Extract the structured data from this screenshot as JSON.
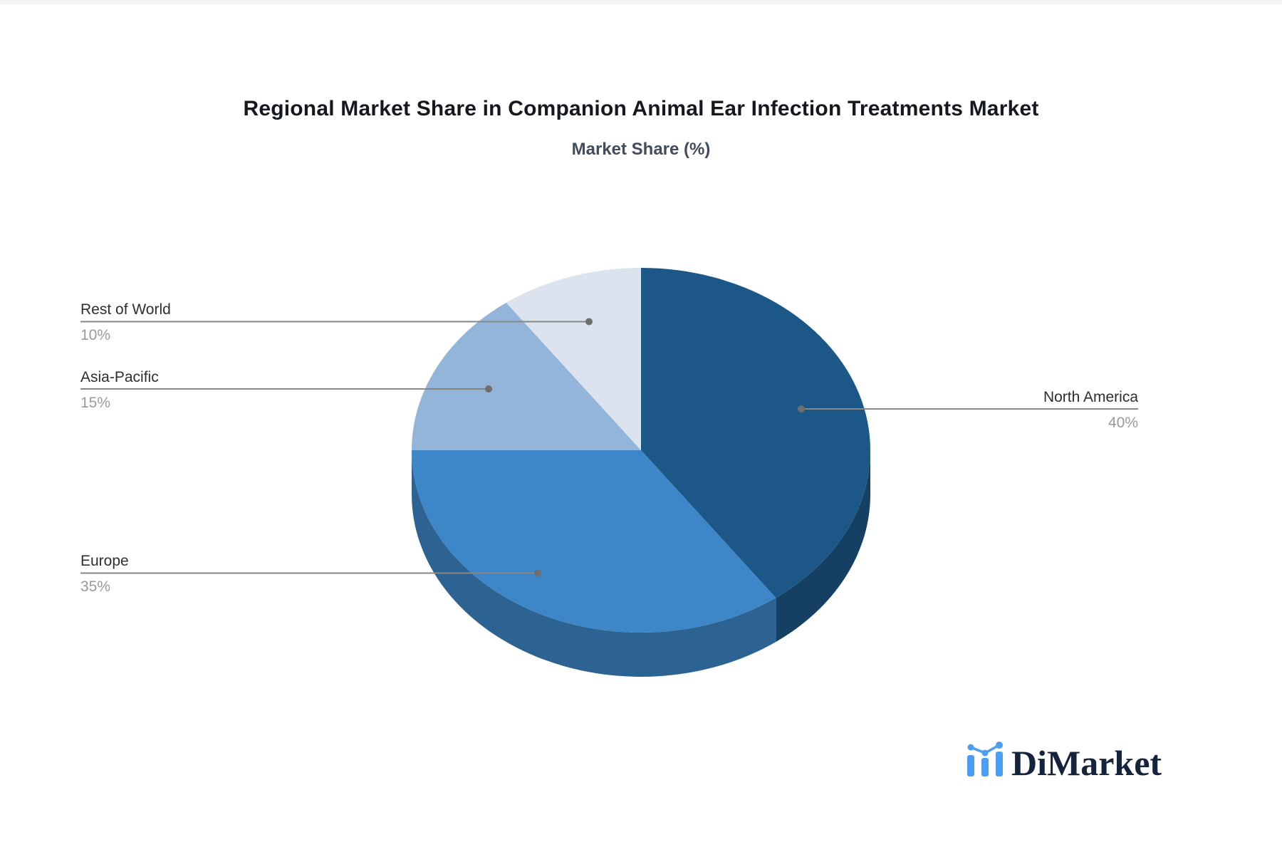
{
  "page": {
    "title": "Regional Market Share in Companion Animal Ear Infection Treatments Market",
    "subtitle": "Market Share (%)"
  },
  "brand": {
    "name": "DiMarket",
    "icon": "bar-line-chart-icon",
    "text_color": "#16233c",
    "icon_color": "#4b9ef3"
  },
  "chart_data": {
    "type": "pie",
    "style": "3d",
    "title": "Regional Market Share in Companion Animal Ear Infection Treatments Market",
    "subtitle": "Market Share (%)",
    "unit": "%",
    "start_angle_deg": 0,
    "direction": "clockwise",
    "legend": "callout-labels",
    "slices": [
      {
        "label": "North America",
        "value": 40,
        "display": "40%",
        "color": "#1d5787",
        "label_side": "right"
      },
      {
        "label": "Europe",
        "value": 35,
        "display": "35%",
        "color": "#3d87c9",
        "label_side": "left"
      },
      {
        "label": "Asia-Pacific",
        "value": 15,
        "display": "15%",
        "color": "#92b5d9",
        "label_side": "left"
      },
      {
        "label": "Rest of World",
        "value": 10,
        "display": "10%",
        "color": "#dce3ee",
        "label_side": "left"
      }
    ],
    "callout_line_color": "#878787",
    "callout_dot_color": "#6f6f6f"
  }
}
